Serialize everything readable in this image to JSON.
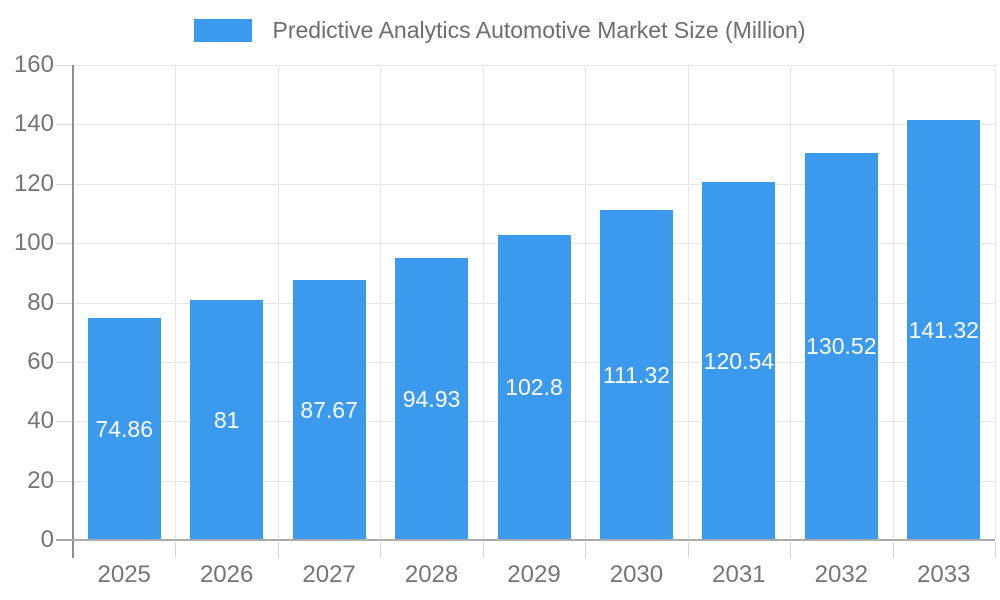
{
  "legend": {
    "label": "Predictive Analytics Automotive Market Size (Million)"
  },
  "chart_data": {
    "type": "bar",
    "title": "Predictive Analytics Automotive Market Size (Million)",
    "categories": [
      "2025",
      "2026",
      "2027",
      "2028",
      "2029",
      "2030",
      "2031",
      "2032",
      "2033"
    ],
    "values": [
      74.86,
      81,
      87.67,
      94.93,
      102.8,
      111.32,
      120.54,
      130.52,
      141.32
    ],
    "value_labels": [
      "74.86",
      "81",
      "87.67",
      "94.93",
      "102.8",
      "111.32",
      "120.54",
      "130.52",
      "141.32"
    ],
    "xlabel": "",
    "ylabel": "",
    "ylim": [
      0,
      160
    ],
    "y_ticks": [
      0,
      20,
      40,
      60,
      80,
      100,
      120,
      140,
      160
    ],
    "grid": true,
    "legend_position": "top",
    "bar_color": "#3b99ee",
    "value_label_color": "#ffffff",
    "tick_label_color": "#757575"
  }
}
